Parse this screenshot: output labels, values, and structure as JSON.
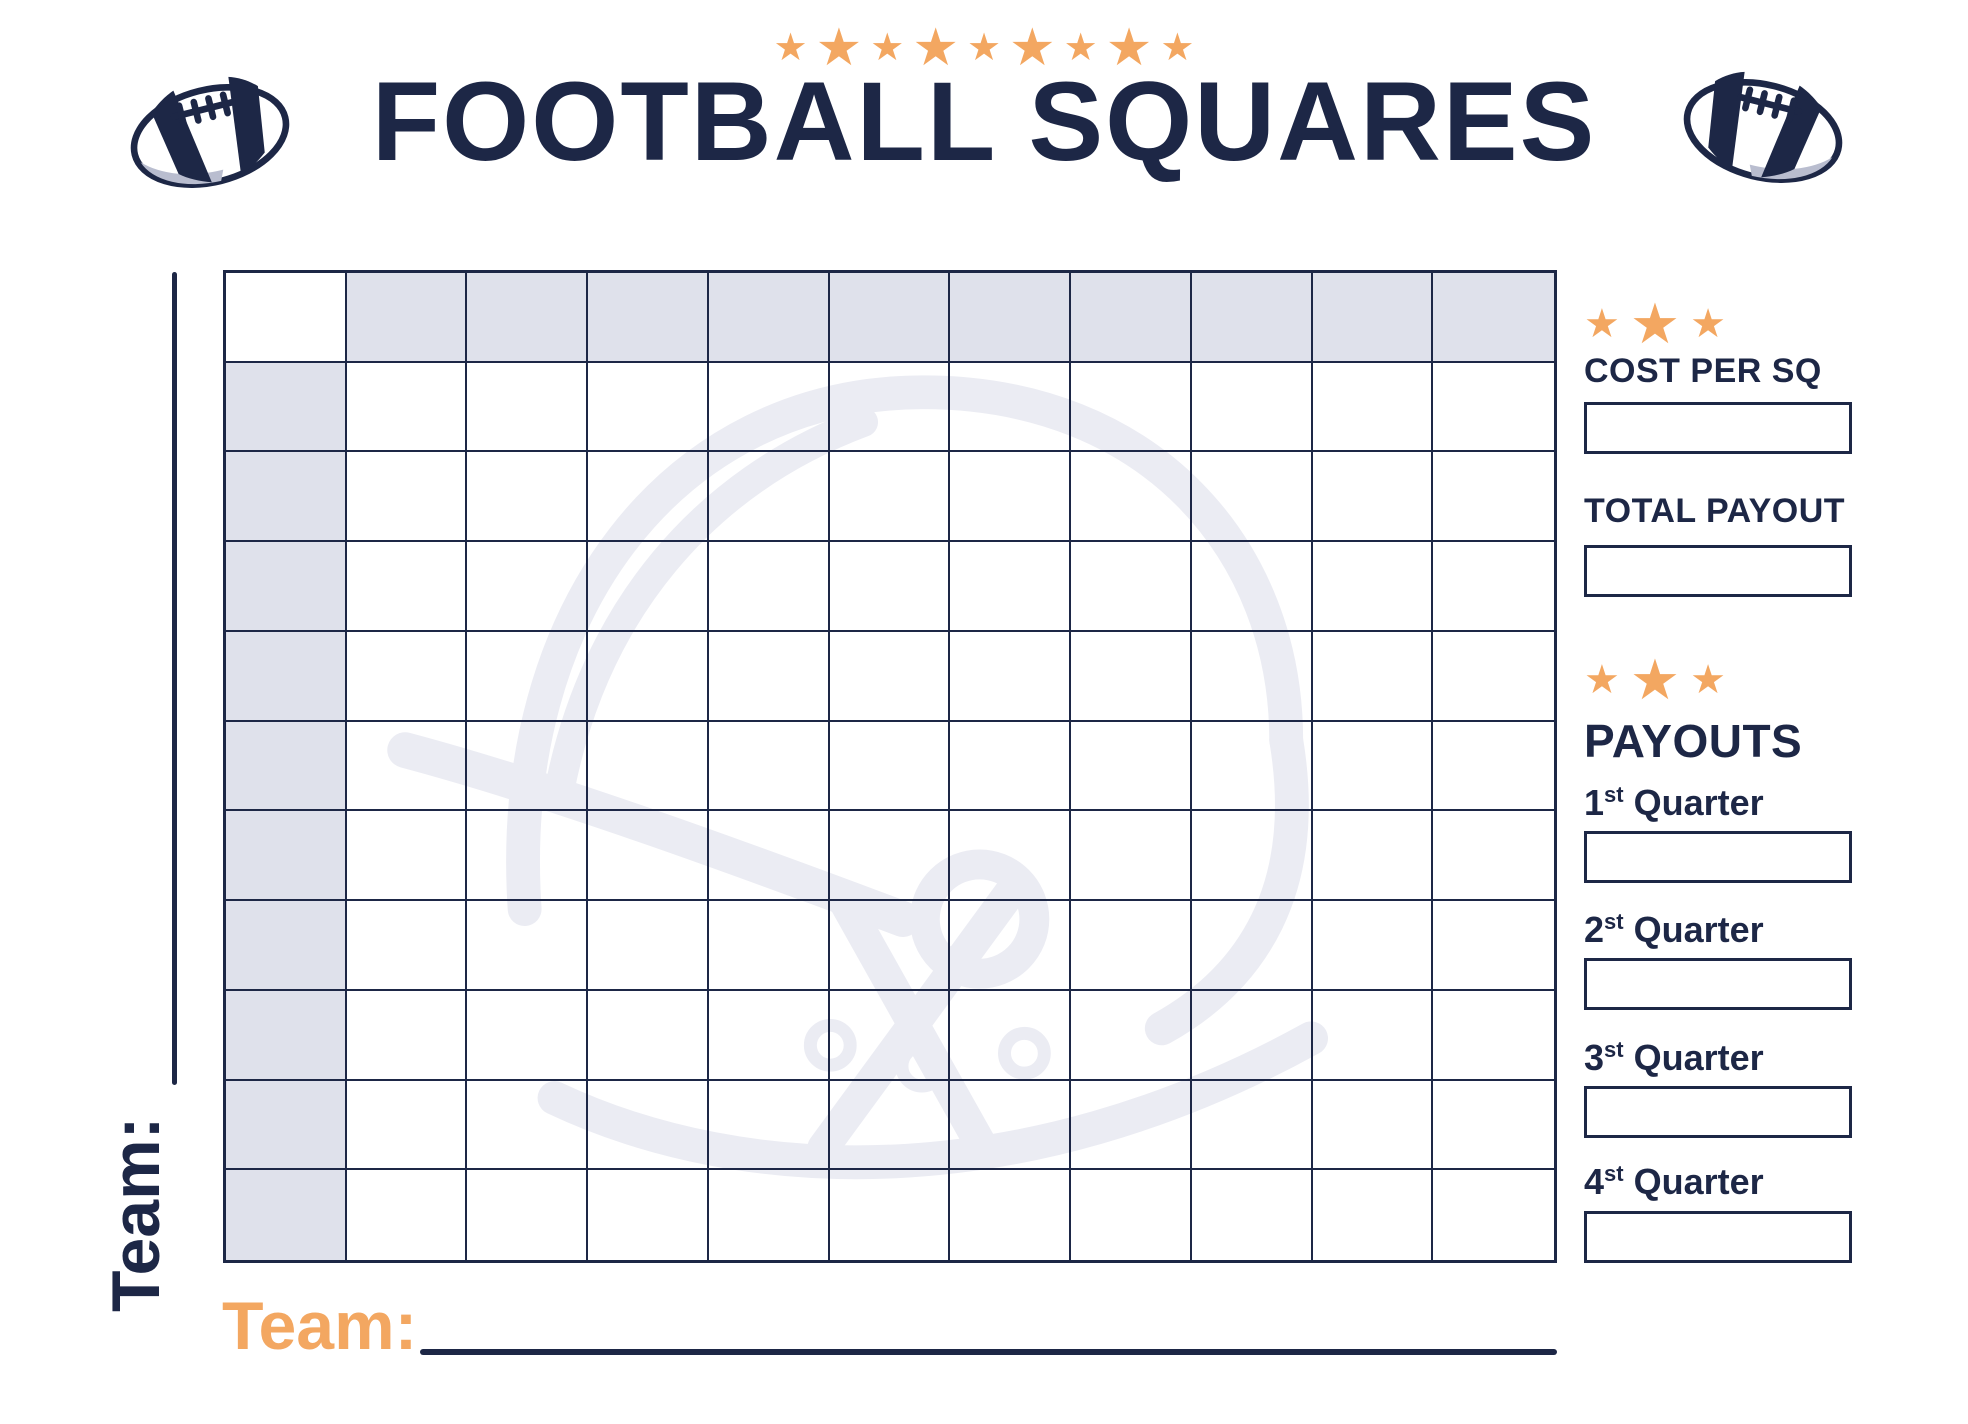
{
  "title": "FOOTBALL SQUARES",
  "decor": {
    "star_char": "★",
    "top_stars": [
      "small",
      "big",
      "small",
      "big",
      "small",
      "big",
      "small",
      "big",
      "small"
    ],
    "side_stars": [
      "small",
      "big",
      "small"
    ]
  },
  "team_left": {
    "label": "Team:"
  },
  "team_bottom": {
    "label": "Team:"
  },
  "sidebar": {
    "cost_label": "COST PER SQ",
    "cost_value": "",
    "total_label": "TOTAL PAYOUT",
    "total_value": "",
    "payouts_title": "PAYOUTS",
    "quarters": [
      {
        "num": "1",
        "suffix": "st",
        "word": "Quarter",
        "value": ""
      },
      {
        "num": "2",
        "suffix": "st",
        "word": "Quarter",
        "value": ""
      },
      {
        "num": "3",
        "suffix": "st",
        "word": "Quarter",
        "value": ""
      },
      {
        "num": "4",
        "suffix": "st",
        "word": "Quarter",
        "value": ""
      }
    ]
  },
  "grid": {
    "rows": 11,
    "cols": 11,
    "note": "top row and left column are shaded header squares, corner square white"
  },
  "colors": {
    "navy": "#1d2746",
    "orange": "#f3a761",
    "header_cell": "#dfe1eb",
    "watermark": "#ebecf3",
    "background": "#ffffff"
  }
}
